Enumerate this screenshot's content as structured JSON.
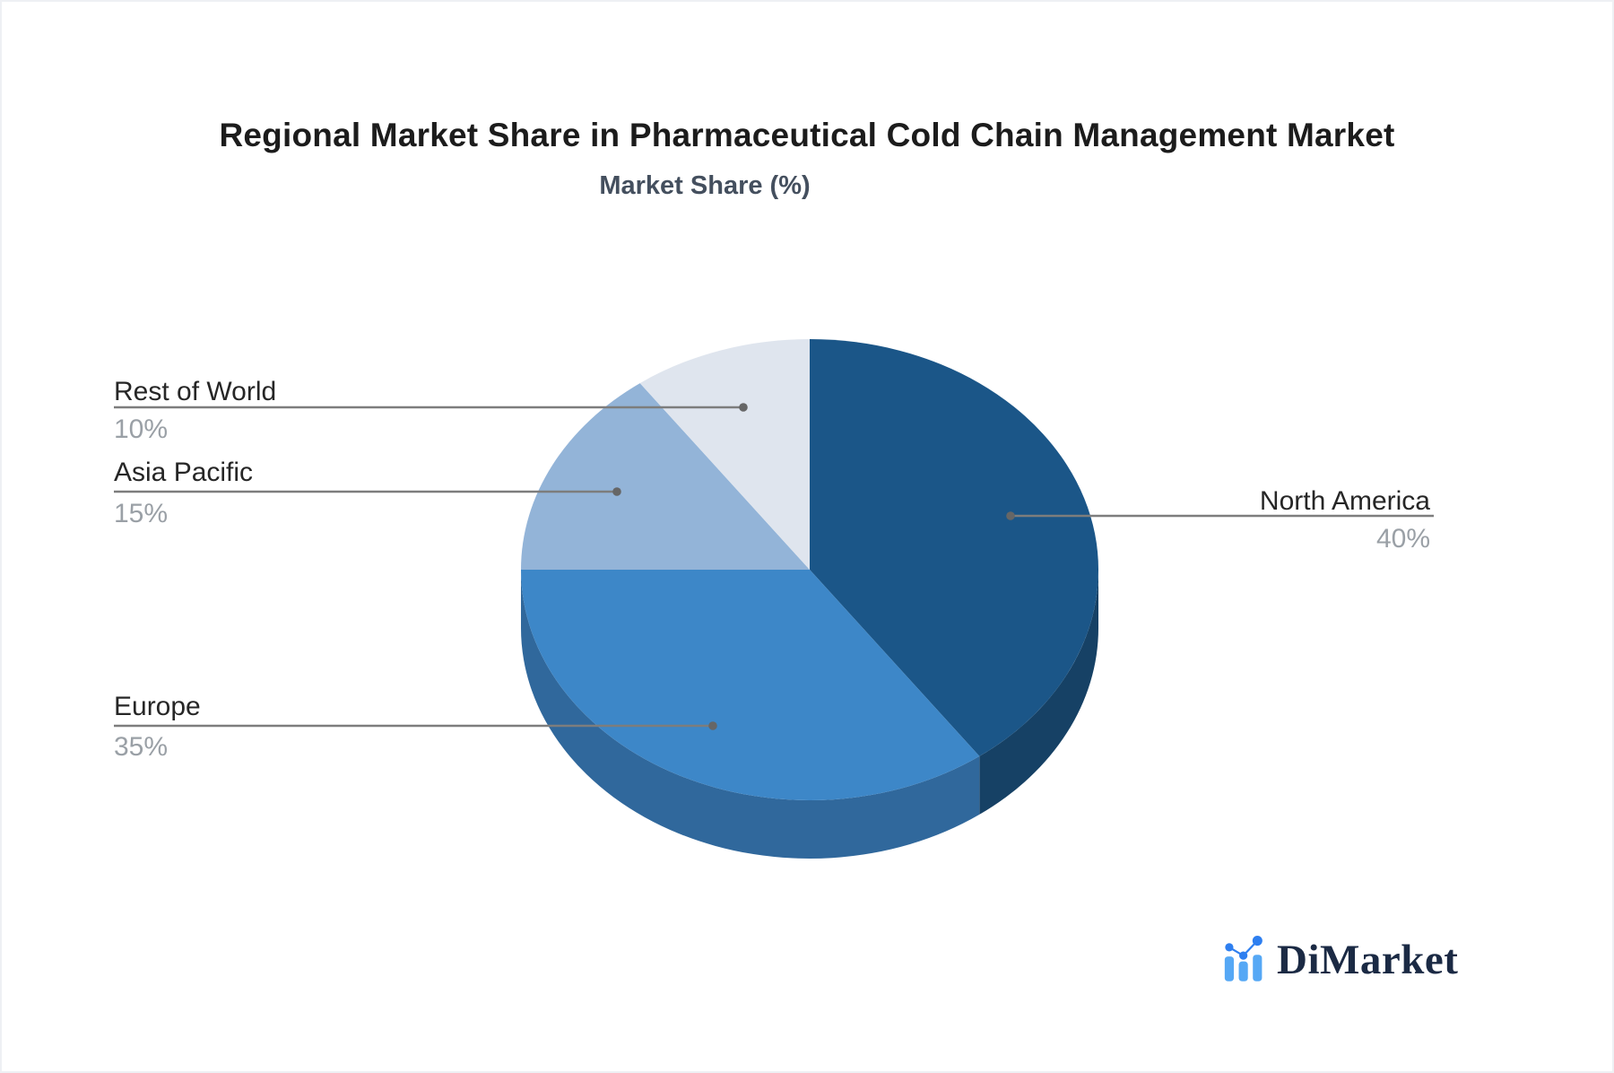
{
  "header": {
    "title": "Regional Market Share in Pharmaceutical Cold Chain Management Market",
    "subtitle": "Market Share (%)"
  },
  "chart_data": {
    "type": "pie",
    "style": "3d-pie",
    "title": "Regional Market Share in Pharmaceutical Cold Chain Management Market",
    "subtitle": "Market Share (%)",
    "unit": "%",
    "start_position": "12-oclock",
    "direction": "clockwise",
    "legend": "none",
    "label_style": "callout-leader-lines",
    "slices": [
      {
        "label": "North America",
        "value": 40,
        "display": "40%",
        "color": "#1b5688",
        "side_color": "#164165"
      },
      {
        "label": "Europe",
        "value": 35,
        "display": "35%",
        "color": "#3d87c8",
        "side_color": "#30689c"
      },
      {
        "label": "Asia Pacific",
        "value": 15,
        "display": "15%",
        "color": "#93b4d8"
      },
      {
        "label": "Rest of World",
        "value": 10,
        "display": "10%",
        "color": "#dfe5ee"
      }
    ],
    "label_text_color": "#262626",
    "pct_text_color": "#9aa0a6",
    "leader_line_color": "#7d7d7d",
    "leader_dot_color": "#666666"
  },
  "branding": {
    "logo_text": "DiMarket",
    "logo_bar_color": "#56a8f5",
    "logo_dot_color": "#2e7ff0"
  }
}
